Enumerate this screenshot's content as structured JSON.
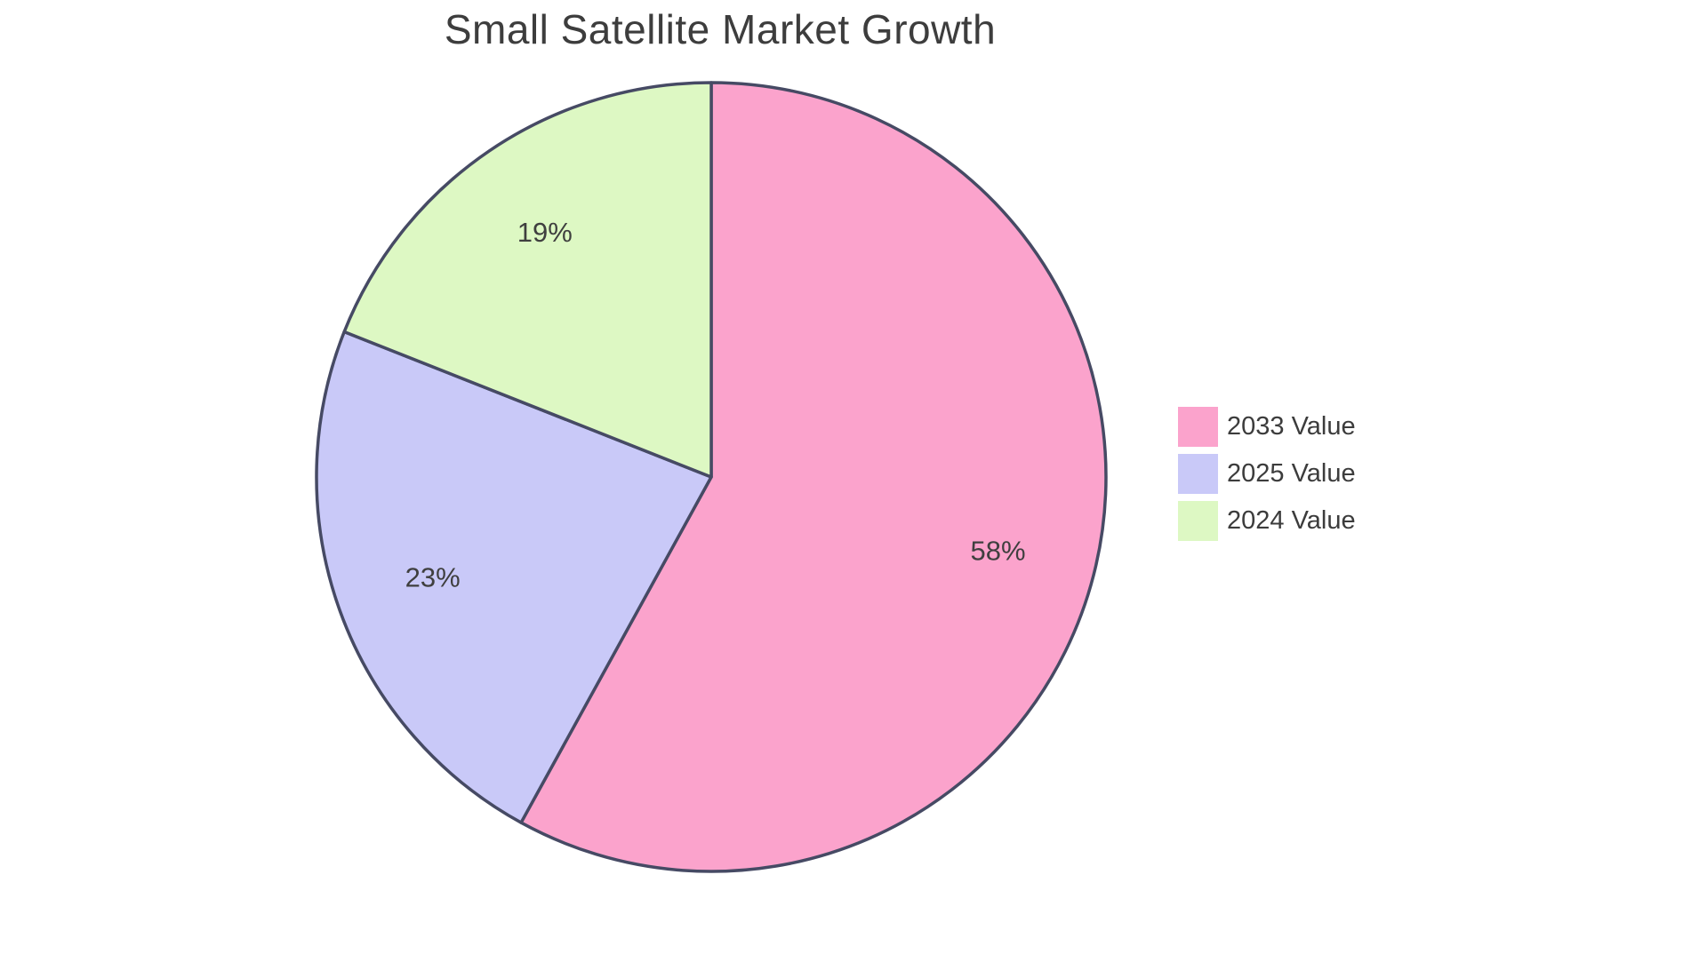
{
  "page": {
    "background_color": "#ffffff"
  },
  "chart_data": {
    "type": "pie",
    "title": "Small Satellite Market Growth",
    "categories": [
      "2033 Value",
      "2025 Value",
      "2024 Value"
    ],
    "values": [
      58,
      23,
      19
    ],
    "value_unit": "%",
    "start_angle": "top",
    "direction": "clockwise",
    "slices": [
      {
        "label": "2033 Value",
        "percent": 58,
        "display": "58%",
        "color": "#FBA3CC"
      },
      {
        "label": "2025 Value",
        "percent": 23,
        "display": "23%",
        "color": "#C9C9F8"
      },
      {
        "label": "2024 Value",
        "percent": 19,
        "display": "19%",
        "color": "#DDF8C3"
      }
    ],
    "legend": {
      "position": "right",
      "entries": [
        "2033 Value",
        "2025 Value",
        "2024 Value"
      ]
    },
    "colors": {
      "slice_border": "#464A64",
      "label_text": "#3F3F3F",
      "title_text": "#3D3D3D",
      "legend_text": "#3C3C3C"
    }
  }
}
